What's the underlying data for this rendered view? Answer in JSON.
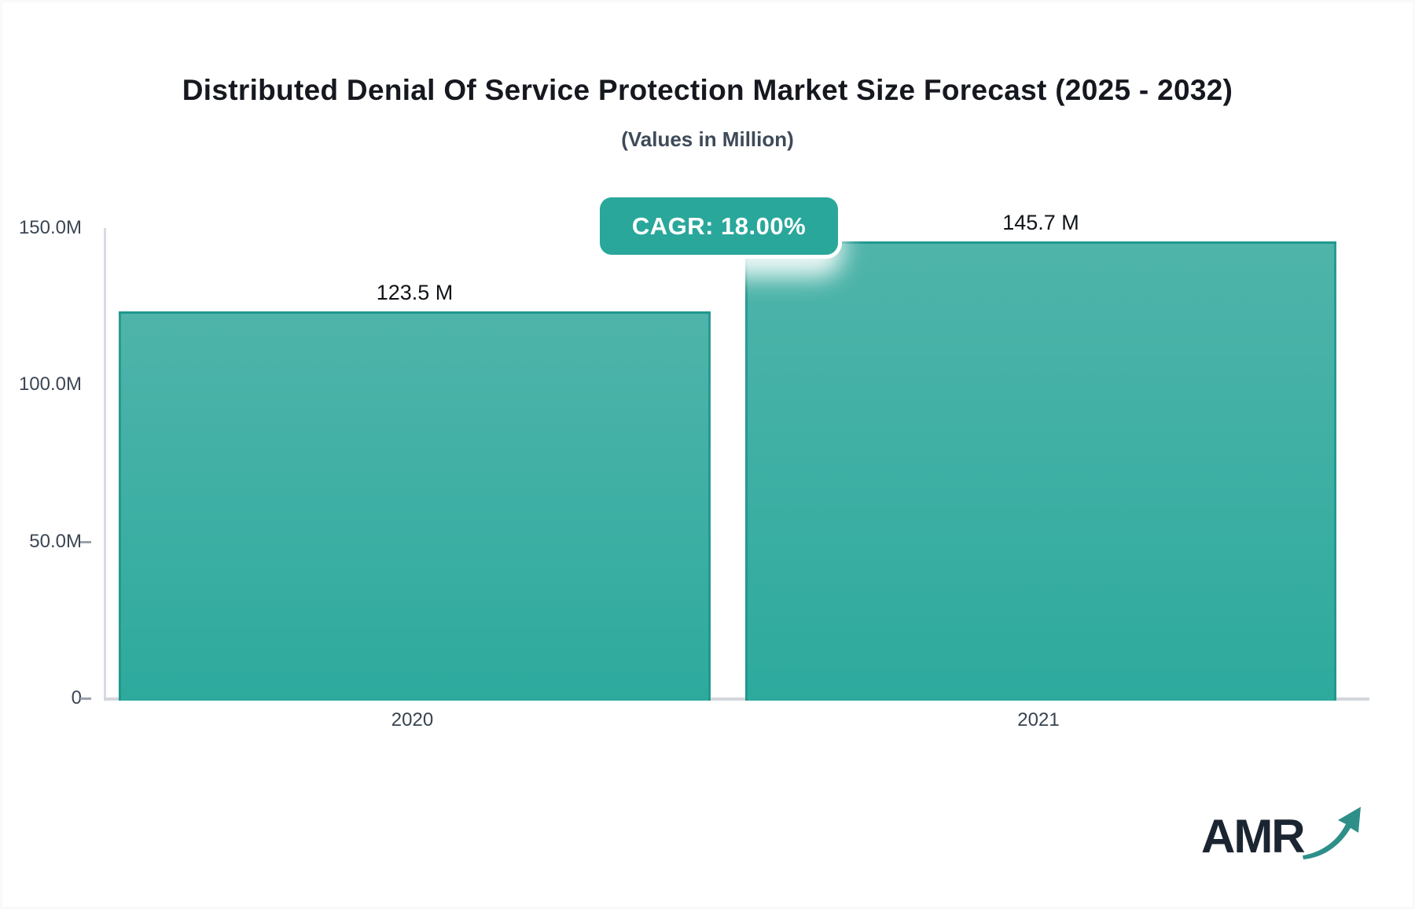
{
  "header": {
    "title": "Distributed Denial Of Service Protection Market Size Forecast (2025 - 2032)",
    "subtitle": "(Values in Million)"
  },
  "badge": {
    "label": "CAGR: 18.00%",
    "bg_color": "#2aa79b",
    "text_color": "#ffffff"
  },
  "chart_data": {
    "type": "bar",
    "title": "Distributed Denial Of Service Protection Market Size Forecast (2025 - 2032)",
    "subtitle": "(Values in Million)",
    "unit": "Million",
    "categories": [
      "2020",
      "2021"
    ],
    "values": [
      123.5,
      145.7
    ],
    "value_labels": [
      "123.5 M",
      "145.7 M"
    ],
    "cagr_percent": "18.00%",
    "ylim": [
      0,
      150
    ],
    "yticks": [
      {
        "label": "150.0M",
        "value": 150,
        "dash": false
      },
      {
        "label": "100.0M",
        "value": 100,
        "dash": false
      },
      {
        "label": "50.0M",
        "value": 50,
        "dash": true
      },
      {
        "label": "0",
        "value": 0,
        "dash": true
      }
    ],
    "grid": false,
    "legend_position": "none",
    "bar_color_top": "#4fb4aa",
    "bar_color_bottom": "#2daa9d"
  },
  "logo": {
    "text": "AMR",
    "text_color": "#1b2531",
    "arrow_color": "#2e8f88"
  }
}
